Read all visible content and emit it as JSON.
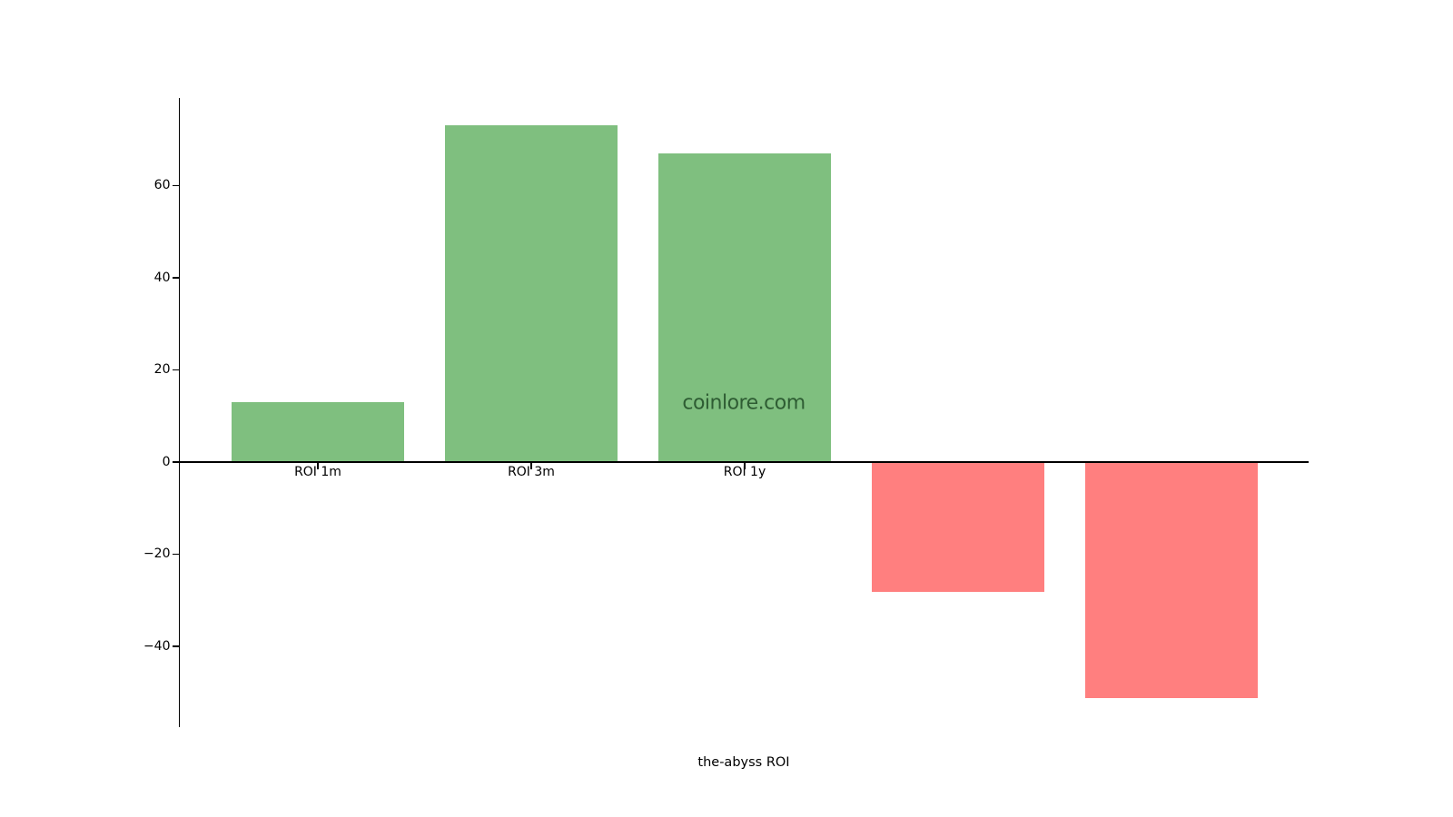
{
  "chart_data": {
    "type": "bar",
    "title": "the-abyss ROI",
    "categories": [
      "ROI 1m",
      "ROI 3m",
      "ROI 1y",
      "",
      ""
    ],
    "values": [
      13,
      73,
      67,
      -28,
      -51
    ],
    "yticks": [
      60,
      40,
      20,
      0,
      -20,
      -40
    ],
    "ylim": [
      -57.5,
      79
    ],
    "grid": false,
    "legend": false,
    "xlabel": "",
    "ylabel": "",
    "positive_color": "#7fbf7f",
    "negative_color": "#ff7f7f",
    "axis_color": "#000000"
  },
  "watermark": {
    "text": "coinlore.com",
    "color": "#2e5c33"
  }
}
